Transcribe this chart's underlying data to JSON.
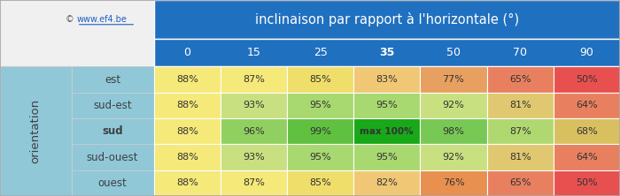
{
  "title": "inclinaison par rapport à l'horizontale (°)",
  "col_headers": [
    "0",
    "15",
    "25",
    "35",
    "50",
    "70",
    "90"
  ],
  "row_headers": [
    "est",
    "sud-est",
    "sud",
    "sud-ouest",
    "ouest"
  ],
  "values": [
    [
      "88%",
      "87%",
      "85%",
      "83%",
      "77%",
      "65%",
      "50%"
    ],
    [
      "88%",
      "93%",
      "95%",
      "95%",
      "92%",
      "81%",
      "64%"
    ],
    [
      "88%",
      "96%",
      "99%",
      "max 100%",
      "98%",
      "87%",
      "68%"
    ],
    [
      "88%",
      "93%",
      "95%",
      "95%",
      "92%",
      "81%",
      "64%"
    ],
    [
      "88%",
      "87%",
      "85%",
      "82%",
      "76%",
      "65%",
      "50%"
    ]
  ],
  "cell_colors": [
    [
      "#f5e97a",
      "#f5e97a",
      "#f0de6a",
      "#f0c875",
      "#e8a060",
      "#e88060",
      "#e85050"
    ],
    [
      "#f5e97a",
      "#c8e080",
      "#a8d870",
      "#a8d870",
      "#c8e080",
      "#e0c870",
      "#e88060"
    ],
    [
      "#f5e97a",
      "#90d060",
      "#60c040",
      "#18a818",
      "#78c855",
      "#b0d870",
      "#d8c060"
    ],
    [
      "#f5e97a",
      "#c8e080",
      "#a8d870",
      "#a8d870",
      "#c8e080",
      "#e0c870",
      "#e88060"
    ],
    [
      "#f5e97a",
      "#f5e97a",
      "#f0de6a",
      "#f0c875",
      "#e89050",
      "#e88060",
      "#e85050"
    ]
  ],
  "header_bg": "#2070c0",
  "header_text": "#ffffff",
  "orient_bg": "#90c8d8",
  "orient_text": "#404040",
  "row_label_bg": "#90c8d8",
  "copyright_text": "© www.ef4.be",
  "bold_35_header": true,
  "bold_sud_row": true,
  "figsize": [
    7.0,
    2.22
  ],
  "dpi": 100
}
